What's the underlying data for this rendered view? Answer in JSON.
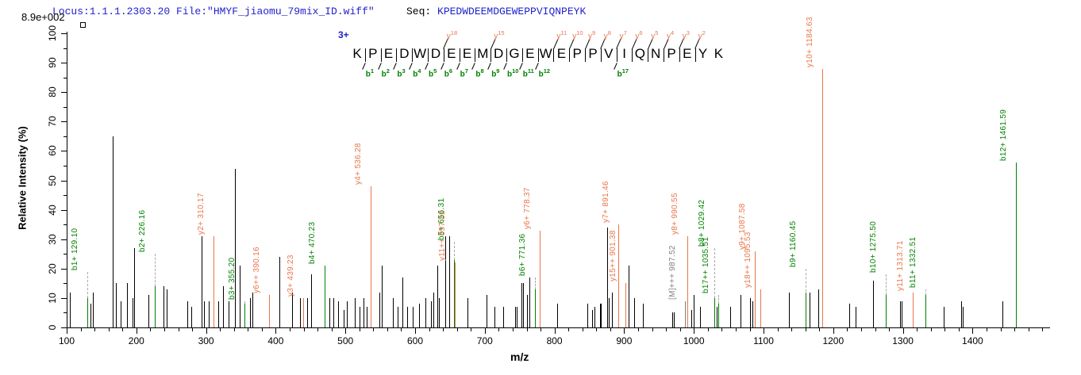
{
  "header": {
    "locus_file": "Locus:1.1.1.2303.20 File:\"HMYF_jiaomu_79mix_ID.wiff\"",
    "seq_label": "Seq: ",
    "sequence": "KPEDWDEEMDGEWEPPVIQNPEYK",
    "max_intensity": "8.9e+002"
  },
  "colors": {
    "b_ion": "#008000",
    "y_ion": "#e8764a",
    "precursor": "#808080",
    "header_blue": "#2121cd",
    "peak_black": "#000000"
  },
  "axes": {
    "x_label": "m/z",
    "y_label": "Relative Intensity (%)",
    "x_min": 100,
    "x_max": 1510,
    "x_major_step": 100,
    "x_minor_step": 20,
    "x_last_major": 1400,
    "y_min": 0,
    "y_max": 100,
    "y_major_step": 10,
    "y_minor_step": 5,
    "y_tick_labels": [
      "0",
      "10",
      "20",
      "30",
      "40",
      "50",
      "60",
      "70",
      "80",
      "90",
      "100"
    ],
    "x_tick_labels": [
      "100",
      "200",
      "300",
      "400",
      "500",
      "600",
      "700",
      "800",
      "900",
      "1000",
      "1100",
      "1200",
      "1300",
      "1400"
    ]
  },
  "sequence_diagram": {
    "charge": "3+",
    "residues": [
      "K",
      "P",
      "E",
      "D",
      "W",
      "D",
      "E",
      "E",
      "M",
      "D",
      "G",
      "E",
      "W",
      "E",
      "P",
      "P",
      "V",
      "I",
      "Q",
      "N",
      "P",
      "E",
      "Y",
      "K"
    ],
    "y_ions": [
      {
        "prefix": "y",
        "num": "18",
        "cut": 6
      },
      {
        "prefix": "y",
        "num": "15",
        "cut": 9
      },
      {
        "prefix": "y",
        "num": "11",
        "cut": 13
      },
      {
        "prefix": "y",
        "num": "10",
        "cut": 14
      },
      {
        "prefix": "y",
        "num": "9",
        "cut": 15
      },
      {
        "prefix": "y",
        "num": "8",
        "cut": 16
      },
      {
        "prefix": "y",
        "num": "7",
        "cut": 17
      },
      {
        "prefix": "y",
        "num": "6",
        "cut": 18
      },
      {
        "prefix": "y",
        "num": "5",
        "cut": 19
      },
      {
        "prefix": "y",
        "num": "4",
        "cut": 20
      },
      {
        "prefix": "y",
        "num": "3",
        "cut": 21
      },
      {
        "prefix": "y",
        "num": "2",
        "cut": 22
      }
    ],
    "b_ions": [
      {
        "prefix": "b",
        "num": "1",
        "cut": 1
      },
      {
        "prefix": "b",
        "num": "2",
        "cut": 2
      },
      {
        "prefix": "b",
        "num": "3",
        "cut": 3
      },
      {
        "prefix": "b",
        "num": "4",
        "cut": 4
      },
      {
        "prefix": "b",
        "num": "5",
        "cut": 5
      },
      {
        "prefix": "b",
        "num": "6",
        "cut": 6
      },
      {
        "prefix": "b",
        "num": "7",
        "cut": 7
      },
      {
        "prefix": "b",
        "num": "8",
        "cut": 8
      },
      {
        "prefix": "b",
        "num": "9",
        "cut": 9
      },
      {
        "prefix": "b",
        "num": "10",
        "cut": 10
      },
      {
        "prefix": "b",
        "num": "11",
        "cut": 11
      },
      {
        "prefix": "b",
        "num": "12",
        "cut": 12
      },
      {
        "prefix": "b",
        "num": "17",
        "cut": 17
      }
    ]
  },
  "chart_data": {
    "type": "bar",
    "subtype": "ms2-fragment-spectrum",
    "xlabel": "m/z",
    "ylabel": "Relative Intensity (%)",
    "xlim": [
      100,
      1510
    ],
    "ylim": [
      0,
      100
    ],
    "labeled_peaks": [
      {
        "mz": 129.1,
        "label": "b1+ 129.10",
        "ion": "b",
        "intensity_pct": 10,
        "label_pct": 19
      },
      {
        "mz": 226.16,
        "label": "b2+ 226.16",
        "ion": "b",
        "intensity_pct": 14,
        "label_pct": 25
      },
      {
        "mz": 310.17,
        "label": "y2+ 310.17",
        "ion": "y",
        "intensity_pct": 31,
        "label_pct": 31
      },
      {
        "mz": 355.2,
        "label": "b3+ 355.20",
        "ion": "b",
        "intensity_pct": 8,
        "label_pct": 9
      },
      {
        "mz": 390.16,
        "label": "y6++ 390.16",
        "ion": "y",
        "intensity_pct": 11,
        "label_pct": 11
      },
      {
        "mz": 439.23,
        "label": "y3+ 439.23",
        "ion": "y",
        "intensity_pct": 10,
        "label_pct": 10
      },
      {
        "mz": 470.23,
        "label": "b4+ 470.23",
        "ion": "b",
        "intensity_pct": 21,
        "label_pct": 21
      },
      {
        "mz": 536.28,
        "label": "y4+ 536.28",
        "ion": "y",
        "intensity_pct": 48,
        "label_pct": 48
      },
      {
        "mz": 656.31,
        "label": "b5+ 656.31",
        "ion": "b",
        "intensity_pct": 23,
        "label_pct": 29
      },
      {
        "mz": 657.32,
        "label": "y11++ 657.32",
        "ion": "y",
        "intensity_pct": 22,
        "label_pct": 22
      },
      {
        "mz": 771.36,
        "label": "b6+ 771.36",
        "ion": "b",
        "intensity_pct": 13,
        "label_pct": 17
      },
      {
        "mz": 778.37,
        "label": "y6+ 778.37",
        "ion": "y",
        "intensity_pct": 33,
        "label_pct": 33
      },
      {
        "mz": 891.46,
        "label": "y7+ 891.46",
        "ion": "y",
        "intensity_pct": 35,
        "label_pct": 35
      },
      {
        "mz": 901.38,
        "label": "y15++ 901.38",
        "ion": "y",
        "intensity_pct": 15,
        "label_pct": 15
      },
      {
        "mz": 987.52,
        "label": "[M]+++ 987.52",
        "ion": "M",
        "intensity_pct": 9,
        "label_pct": 9
      },
      {
        "mz": 990.55,
        "label": "y8+ 990.55",
        "ion": "y",
        "intensity_pct": 31,
        "label_pct": 31
      },
      {
        "mz": 1029.42,
        "label": "b8+ 1029.42",
        "ion": "b",
        "intensity_pct": 10,
        "label_pct": 27
      },
      {
        "mz": 1035.51,
        "label": "b17++ 1035.51",
        "ion": "b",
        "intensity_pct": 8,
        "label_pct": 11
      },
      {
        "mz": 1087.58,
        "label": "y9+ 1087.58",
        "ion": "y",
        "intensity_pct": 26,
        "label_pct": 26
      },
      {
        "mz": 1095.53,
        "label": "y18++ 1095.53",
        "ion": "y",
        "intensity_pct": 13,
        "label_pct": 13
      },
      {
        "mz": 1160.45,
        "label": "b9+ 1160.45",
        "ion": "b",
        "intensity_pct": 12,
        "label_pct": 20
      },
      {
        "mz": 1184.63,
        "label": "y10+ 1184.63",
        "ion": "y",
        "intensity_pct": 88,
        "label_pct": 88
      },
      {
        "mz": 1275.5,
        "label": "b10+ 1275.50",
        "ion": "b",
        "intensity_pct": 11,
        "label_pct": 18
      },
      {
        "mz": 1313.71,
        "label": "y11+ 1313.71",
        "ion": "y",
        "intensity_pct": 12,
        "label_pct": 12
      },
      {
        "mz": 1332.51,
        "label": "b11+ 1332.51",
        "ion": "b",
        "intensity_pct": 11,
        "label_pct": 13
      },
      {
        "mz": 1461.59,
        "label": "b12+ 1461.59",
        "ion": "b",
        "intensity_pct": 56,
        "label_pct": 56
      }
    ],
    "unlabeled_peaks": [
      [
        104,
        12
      ],
      [
        134,
        8
      ],
      [
        138,
        12
      ],
      [
        166,
        65
      ],
      [
        171,
        15
      ],
      [
        177,
        9
      ],
      [
        187,
        15
      ],
      [
        194,
        10
      ],
      [
        197,
        27
      ],
      [
        217,
        11
      ],
      [
        239,
        14
      ],
      [
        244,
        13
      ],
      [
        273,
        9
      ],
      [
        279,
        7
      ],
      [
        293,
        31
      ],
      [
        297,
        9
      ],
      [
        304,
        9
      ],
      [
        318,
        9
      ],
      [
        324,
        14
      ],
      [
        332,
        9
      ],
      [
        341,
        54
      ],
      [
        348,
        21
      ],
      [
        363,
        10
      ],
      [
        367,
        12
      ],
      [
        405,
        24
      ],
      [
        423,
        12
      ],
      [
        435,
        10
      ],
      [
        445,
        10
      ],
      [
        451,
        18
      ],
      [
        477,
        10
      ],
      [
        483,
        10
      ],
      [
        490,
        9
      ],
      [
        497,
        6
      ],
      [
        502,
        9
      ],
      [
        513,
        10
      ],
      [
        520,
        7
      ],
      [
        526,
        10
      ],
      [
        530,
        7
      ],
      [
        549,
        12
      ],
      [
        552,
        21
      ],
      [
        568,
        10
      ],
      [
        575,
        7
      ],
      [
        582,
        17
      ],
      [
        589,
        7
      ],
      [
        597,
        7
      ],
      [
        606,
        8
      ],
      [
        615,
        10
      ],
      [
        623,
        9
      ],
      [
        626,
        12
      ],
      [
        632,
        21
      ],
      [
        634,
        10
      ],
      [
        643,
        31
      ],
      [
        649,
        31
      ],
      [
        675,
        10
      ],
      [
        703,
        11
      ],
      [
        714,
        7
      ],
      [
        726,
        7
      ],
      [
        743,
        7
      ],
      [
        746,
        7
      ],
      [
        753,
        15
      ],
      [
        755,
        15
      ],
      [
        760,
        11
      ],
      [
        764,
        17
      ],
      [
        804,
        8
      ],
      [
        847,
        8
      ],
      [
        854,
        6
      ],
      [
        857,
        7
      ],
      [
        865,
        8
      ],
      [
        867,
        8
      ],
      [
        875,
        34
      ],
      [
        878,
        10
      ],
      [
        882,
        12
      ],
      [
        906,
        21
      ],
      [
        914,
        10
      ],
      [
        927,
        8
      ],
      [
        969,
        5
      ],
      [
        971,
        5
      ],
      [
        996,
        6
      ],
      [
        1000,
        11
      ],
      [
        1009,
        7
      ],
      [
        1033,
        7
      ],
      [
        1052,
        7
      ],
      [
        1067,
        11
      ],
      [
        1080,
        10
      ],
      [
        1084,
        9
      ],
      [
        1136,
        12
      ],
      [
        1166,
        12
      ],
      [
        1178,
        13
      ],
      [
        1223,
        8
      ],
      [
        1232,
        7
      ],
      [
        1257,
        16
      ],
      [
        1296,
        9
      ],
      [
        1298,
        9
      ],
      [
        1358,
        7
      ],
      [
        1383,
        9
      ],
      [
        1386,
        7
      ],
      [
        1443,
        9
      ]
    ]
  }
}
